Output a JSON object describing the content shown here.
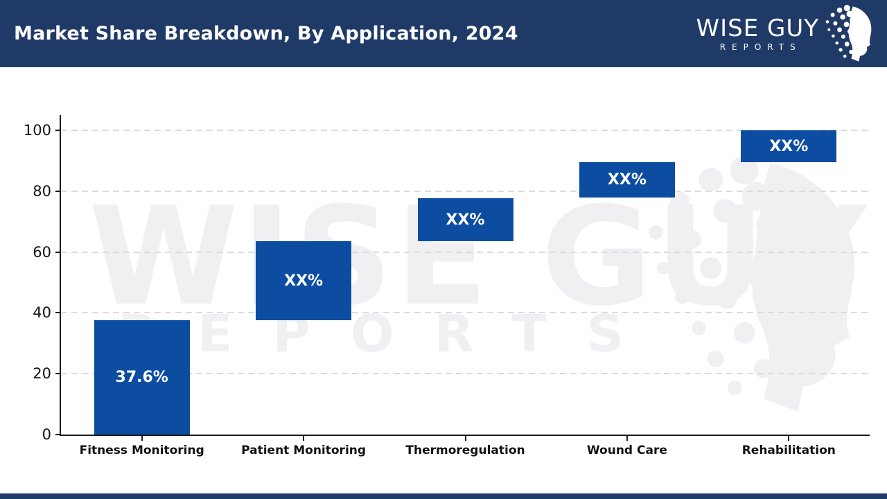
{
  "header": {
    "title": "Market Share Breakdown, By Application, 2024",
    "logo": {
      "line1": "WISE GUY",
      "line2": "REPORTS"
    }
  },
  "watermark": {
    "line1": "WISE GUY",
    "line2": "REPORTS"
  },
  "colors": {
    "header_bg": "#203a68",
    "footer_bg": "#203a68",
    "bar": "#0c4da2",
    "bar_label": "#ffffff",
    "grid": "#dcdcdc",
    "axis": "#1a1a1a",
    "tick_text": "#111111",
    "watermark": "#f0f0f3"
  },
  "chart_data": {
    "type": "bar",
    "subtype": "waterfall",
    "title": "Market Share Breakdown, By Application, 2024",
    "categories": [
      "Fitness Monitoring",
      "Patient Monitoring",
      "Thermoregulation",
      "Wound Care",
      "Rehabilitation"
    ],
    "bars": [
      {
        "category": "Fitness Monitoring",
        "start": 0,
        "end": 37.6,
        "label": "37.6%"
      },
      {
        "category": "Patient Monitoring",
        "start": 37.6,
        "end": 63.5,
        "label": "XX%"
      },
      {
        "category": "Thermoregulation",
        "start": 63.5,
        "end": 77.7,
        "label": "XX%"
      },
      {
        "category": "Wound Care",
        "start": 77.9,
        "end": 89.5,
        "label": "XX%"
      },
      {
        "category": "Rehabilitation",
        "start": 89.5,
        "end": 100,
        "label": "XX%"
      }
    ],
    "yticks": [
      0,
      20,
      40,
      60,
      80,
      100
    ],
    "ylim": [
      0,
      105
    ],
    "xlabel": "",
    "ylabel": "",
    "grid": "dashed-horizontal",
    "legend": "none"
  }
}
